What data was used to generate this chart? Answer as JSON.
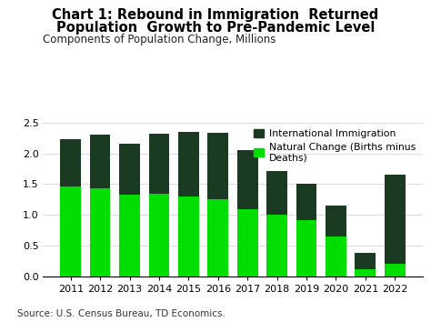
{
  "title_line1": "Chart 1: Rebound in Immigration  Returned",
  "title_line2": "Population  Growth to Pre-Pandemic Level",
  "subtitle": "Components of Population Change, Millions",
  "source": "Source: U.S. Census Bureau, TD Economics.",
  "years": [
    2011,
    2012,
    2013,
    2014,
    2015,
    2016,
    2017,
    2018,
    2019,
    2020,
    2021,
    2022
  ],
  "natural_change": [
    1.47,
    1.44,
    1.33,
    1.35,
    1.3,
    1.25,
    1.09,
    1.0,
    0.92,
    0.65,
    0.12,
    0.21
  ],
  "immigration": [
    0.76,
    0.86,
    0.82,
    0.96,
    1.05,
    1.08,
    0.96,
    0.72,
    0.58,
    0.5,
    0.27,
    1.44
  ],
  "color_natural": "#00dd00",
  "color_immigration": "#1b3a22",
  "ylim": [
    0,
    2.5
  ],
  "yticks": [
    0.0,
    0.5,
    1.0,
    1.5,
    2.0,
    2.5
  ],
  "bar_width": 0.7,
  "background_color": "#ffffff",
  "title_fontsize": 10.5,
  "subtitle_fontsize": 8.5,
  "source_fontsize": 7.5,
  "tick_fontsize": 8,
  "legend_fontsize": 7.8
}
